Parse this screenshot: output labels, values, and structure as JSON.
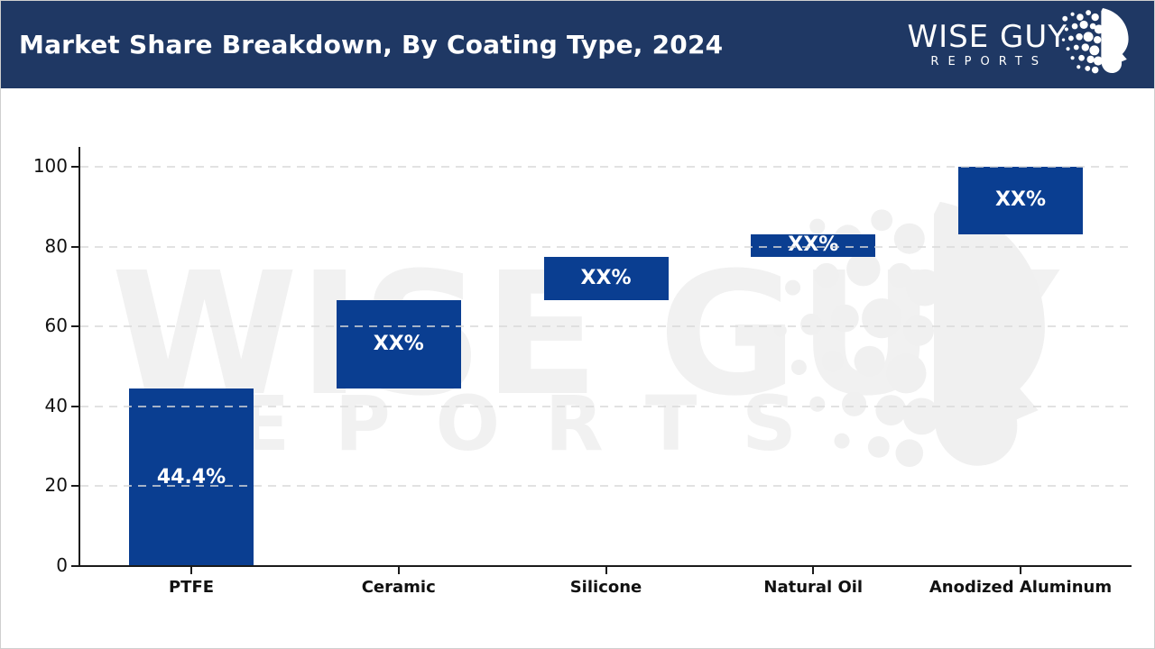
{
  "header": {
    "title": "Market Share Breakdown, By Coating Type, 2024",
    "logo": {
      "line1": "WISE GUY",
      "line2": "REPORTS"
    }
  },
  "watermark": {
    "line1": "WISE GUY",
    "line2": "REPORTS"
  },
  "chart_data": {
    "type": "bar",
    "subtype": "floating-waterfall",
    "title": "Market Share Breakdown, By Coating Type, 2024",
    "categories": [
      "PTFE",
      "Ceramic",
      "Silicone",
      "Natural Oil",
      "Anodized Aluminum"
    ],
    "bars": [
      {
        "category": "PTFE",
        "start": 0,
        "end": 44.4,
        "label": "44.4%"
      },
      {
        "category": "Ceramic",
        "start": 44.4,
        "end": 66.6,
        "label": "XX%"
      },
      {
        "category": "Silicone",
        "start": 66.6,
        "end": 77.5,
        "label": "XX%"
      },
      {
        "category": "Natural Oil",
        "start": 77.5,
        "end": 83.1,
        "label": "XX%"
      },
      {
        "category": "Anodized Aluminum",
        "start": 83.1,
        "end": 100.0,
        "label": "XX%"
      }
    ],
    "xlabel": "",
    "ylabel": "",
    "ylim": [
      0,
      105
    ],
    "yticks": [
      0,
      20,
      40,
      60,
      80,
      100
    ],
    "grid": "horizontal-dashed",
    "legend": false,
    "bar_color": "#0a3e91",
    "colors": {
      "header_bg": "#1f3864",
      "bar": "#0a3e91",
      "grid": "#d9d9d9",
      "axis": "#1a1a1a",
      "watermark": "#f1f1f1"
    }
  }
}
